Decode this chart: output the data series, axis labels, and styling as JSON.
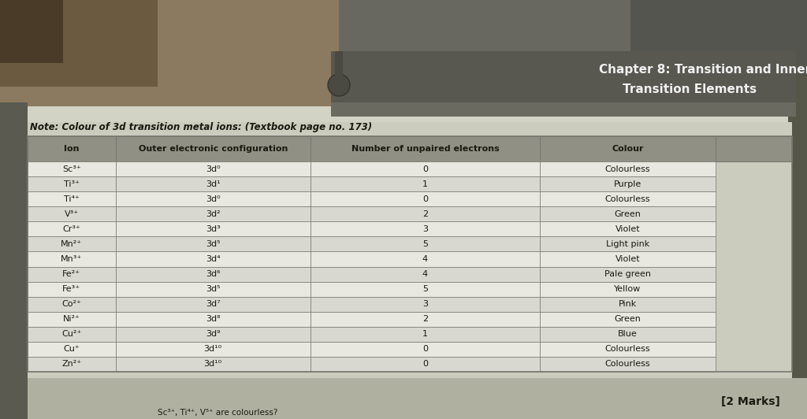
{
  "chapter_header_line1": "Chapter 8: Transition and Inner",
  "chapter_header_line2": "Transition Elements",
  "note_text": "Note: Colour of 3d transition metal ions: (Textbook page no. 173)",
  "marks_text": "[2 Marks]",
  "col_headers": [
    "Ion",
    "Outer electronic configuration",
    "Number of unpaired electrons",
    "Colour"
  ],
  "rows": [
    [
      "Sc³⁺",
      "3d⁰",
      "0",
      "Colourless"
    ],
    [
      "Ti³⁺",
      "3d¹",
      "1",
      "Purple"
    ],
    [
      "Ti⁴⁺",
      "3d⁰",
      "0",
      "Colourless"
    ],
    [
      "V³⁺",
      "3d²",
      "2",
      "Green"
    ],
    [
      "Cr³⁺",
      "3d³",
      "3",
      "Violet"
    ],
    [
      "Mn²⁺",
      "3d⁵",
      "5",
      "Light pink"
    ],
    [
      "Mn³⁺",
      "3d⁴",
      "4",
      "Violet"
    ],
    [
      "Fe²⁺",
      "3d⁶",
      "4",
      "Pale green"
    ],
    [
      "Fe³⁺",
      "3d⁵",
      "5",
      "Yellow"
    ],
    [
      "Co²⁺",
      "3d⁷",
      "3",
      "Pink"
    ],
    [
      "Ni²⁺",
      "3d⁸",
      "2",
      "Green"
    ],
    [
      "Cu²⁺",
      "3d⁹",
      "1",
      "Blue"
    ],
    [
      "Cu⁺",
      "3d¹⁰",
      "0",
      "Colourless"
    ],
    [
      "Zn²⁺",
      "3d¹⁰",
      "0",
      "Colourless"
    ]
  ],
  "fig_bg": "#6b6b5e",
  "top_left_bg": "#8b7355",
  "top_right_bg": "#7a7a6a",
  "chapter_bar_bg": "#5a5a50",
  "chapter_bar_stripe": "#686860",
  "page_bg": "#c8c8b8",
  "table_header_bg": "#909085",
  "table_row_light": "#e8e8e0",
  "table_row_mid": "#d8d8d0",
  "table_border": "#777770",
  "text_dark": "#1a1a10",
  "text_white": "#f0f0f0",
  "bottom_bg": "#b8b8a8"
}
